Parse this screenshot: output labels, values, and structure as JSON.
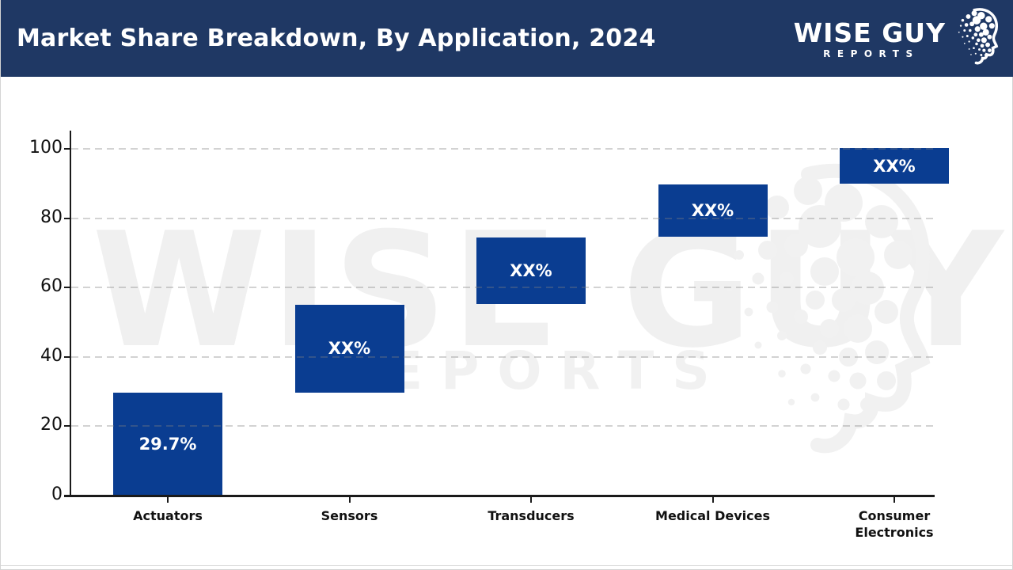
{
  "header": {
    "title": "Market Share Breakdown, By Application, 2024",
    "logo": {
      "line1": "WISE GUY",
      "line2": "REPORTS"
    }
  },
  "watermark": {
    "line1": "WISE GUY",
    "line2": "R  E  P  O  R  T  S"
  },
  "colors": {
    "header_bg": "#1f3864",
    "bar": "#0a3d91",
    "axis": "#1a1a1a",
    "watermark": "#f0f0f0"
  },
  "chart_data": {
    "type": "bar",
    "subtype": "waterfall",
    "title": "Market Share Breakdown, By Application, 2024",
    "xlabel": "",
    "ylabel": "",
    "ylim": [
      0,
      105
    ],
    "yticks": [
      0,
      20,
      40,
      60,
      80,
      100
    ],
    "grid": "horizontal-dashed-over-bars",
    "legend": "none",
    "categories": [
      "Actuators",
      "Sensors",
      "Transducers",
      "Medical Devices",
      "Consumer Electronics"
    ],
    "series": [
      {
        "name": "Market Share",
        "segments": [
          {
            "category": "Actuators",
            "start": 0,
            "end": 29.7,
            "label": "29.7%"
          },
          {
            "category": "Sensors",
            "start": 29.7,
            "end": 55.1,
            "label": "XX%"
          },
          {
            "category": "Transducers",
            "start": 55.2,
            "end": 74.4,
            "label": "XX%"
          },
          {
            "category": "Medical Devices",
            "start": 74.6,
            "end": 89.7,
            "label": "XX%"
          },
          {
            "category": "Consumer Electronics",
            "start": 89.9,
            "end": 100.2,
            "label": "XX%"
          }
        ]
      }
    ]
  }
}
